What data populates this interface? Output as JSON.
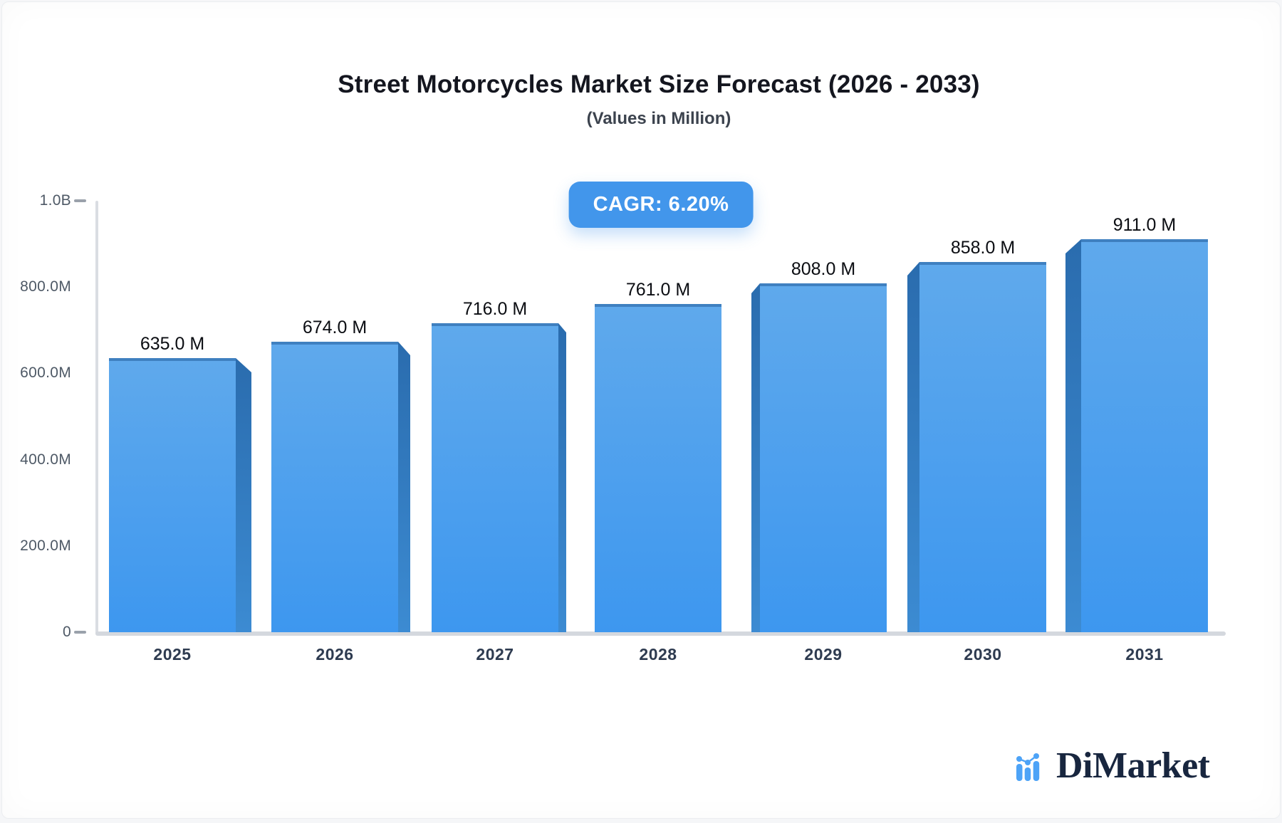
{
  "title": "Street Motorcycles Market Size Forecast (2026 - 2033)",
  "subtitle": "(Values in Million)",
  "badge": {
    "label": "CAGR: 6.20%"
  },
  "logo": {
    "text": "DiMarket",
    "icon": "mini-bar-chart-icon"
  },
  "colors": {
    "bar_face_top": "#5fa9ec",
    "bar_face_bottom": "#3d97ef",
    "bar_side": "#2d74b7",
    "badge_bg": "#4296eb",
    "axis": "#d4d8de",
    "brand_navy": "#18263f",
    "brand_blue": "#4da3f7"
  },
  "chart_data": {
    "type": "bar",
    "title": "Street Motorcycles Market Size Forecast (2026 - 2033)",
    "subtitle": "(Values in Million)",
    "xlabel": "",
    "ylabel": "",
    "categories": [
      "2025",
      "2026",
      "2027",
      "2028",
      "2029",
      "2030",
      "2031"
    ],
    "values": [
      635,
      674,
      716,
      761,
      808,
      858,
      911
    ],
    "value_labels": [
      "635.0 M",
      "674.0 M",
      "716.0 M",
      "761.0 M",
      "808.0 M",
      "858.0 M",
      "911.0 M"
    ],
    "unit": "Million",
    "ylim": [
      0,
      1000
    ],
    "yticks": [
      {
        "label": "1.0B",
        "value": 1000
      },
      {
        "label": "800.0M",
        "value": 800
      },
      {
        "label": "600.0M",
        "value": 600
      },
      {
        "label": "400.0M",
        "value": 400
      },
      {
        "label": "200.0M",
        "value": 200
      },
      {
        "label": "0",
        "value": 0
      }
    ],
    "grid": false,
    "legend": false,
    "style": "3d-perspective-bars"
  }
}
